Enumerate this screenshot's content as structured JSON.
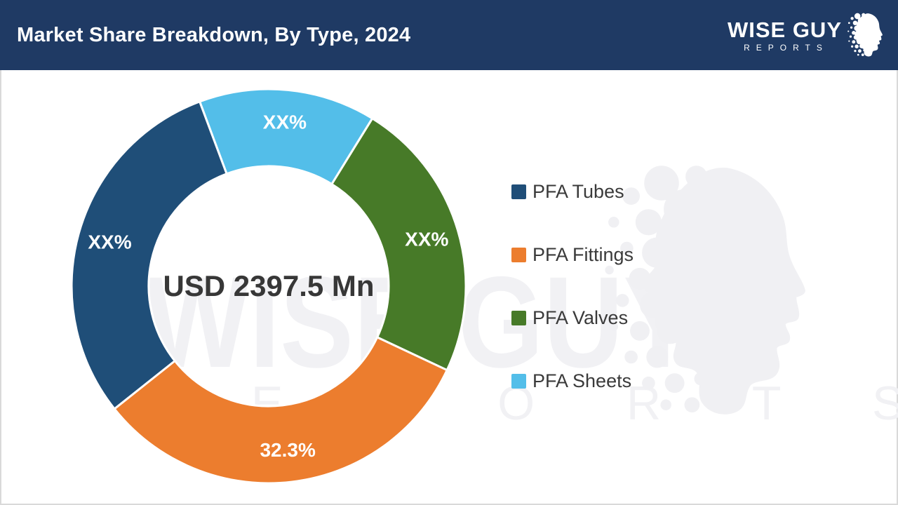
{
  "header": {
    "title": "Market Share Breakdown, By Type, 2024",
    "logo": {
      "line1": "WISE GUY",
      "line2": "REPORTS"
    }
  },
  "watermark": {
    "line1": "WISE GUY",
    "line2": "R E P O R T S"
  },
  "chart_data": {
    "type": "pie",
    "subtype": "donut",
    "title": "Market Share Breakdown, By Type, 2024",
    "center_label": "USD 2397.5 Mn",
    "start_angle_deg": -20.5,
    "segments": [
      {
        "name": "PFA Sheets",
        "value_pct": 14.5,
        "label": "XX%",
        "color": "#53bee9"
      },
      {
        "name": "PFA Valves",
        "value_pct": 23.2,
        "label": "XX%",
        "color": "#477a28"
      },
      {
        "name": "PFA Fittings",
        "value_pct": 32.3,
        "label": "32.3%",
        "color": "#ec7d2e"
      },
      {
        "name": "PFA Tubes",
        "value_pct": 30.0,
        "label": "XX%",
        "color": "#1f4e78"
      }
    ],
    "legend": [
      {
        "label": "PFA Tubes",
        "color": "#1f4e78"
      },
      {
        "label": "PFA Fittings",
        "color": "#ec7d2e"
      },
      {
        "label": "PFA Valves",
        "color": "#477a28"
      },
      {
        "label": "PFA Sheets",
        "color": "#53bee9"
      }
    ],
    "legend_position": "right"
  },
  "colors": {
    "header_bg": "#1f3a64",
    "title_text": "#ffffff",
    "center_text": "#373737",
    "watermark": "#f1f1f4",
    "background": "#ffffff",
    "border": "#d9d9d9"
  }
}
